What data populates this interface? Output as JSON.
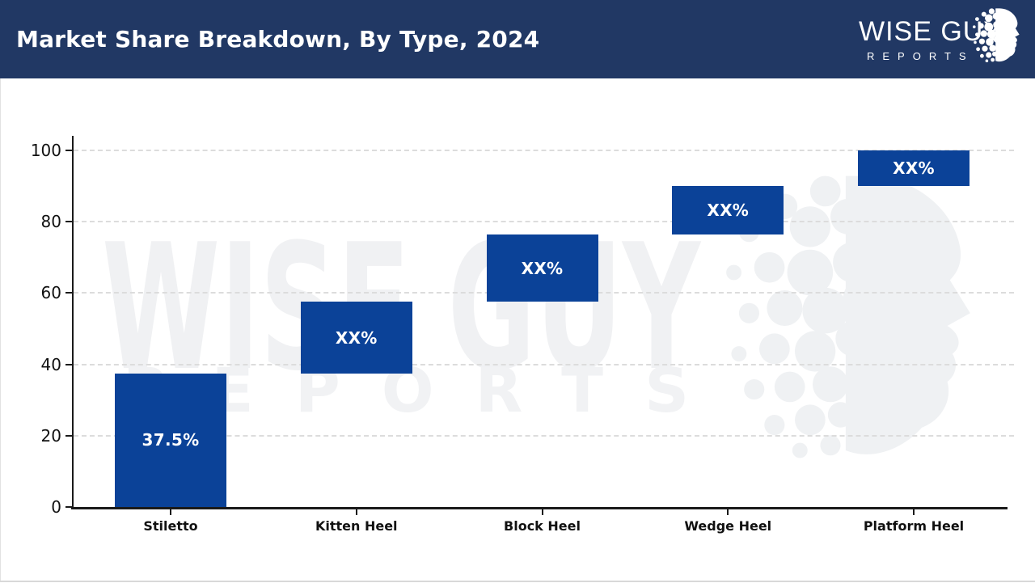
{
  "header": {
    "title": "Market Share Breakdown, By Type, 2024",
    "background_color": "#213864",
    "logo": {
      "line1": "WISE GUY",
      "line2": "REPORTS"
    }
  },
  "watermark": {
    "line1": "WISE GUY",
    "line2": "REPORTS"
  },
  "chart_data": {
    "type": "bar",
    "subtype": "waterfall",
    "title": "Market Share Breakdown, By Type, 2024",
    "categories": [
      "Stiletto",
      "Kitten Heel",
      "Block Heel",
      "Wedge Heel",
      "Platform Heel"
    ],
    "segments": [
      {
        "category": "Stiletto",
        "start": 0,
        "end": 37.5,
        "label": "37.5%"
      },
      {
        "category": "Kitten Heel",
        "start": 37.5,
        "end": 57.5,
        "label": "XX%"
      },
      {
        "category": "Block Heel",
        "start": 57.5,
        "end": 76.5,
        "label": "XX%"
      },
      {
        "category": "Wedge Heel",
        "start": 76.5,
        "end": 90,
        "label": "XX%"
      },
      {
        "category": "Platform Heel",
        "start": 90,
        "end": 100,
        "label": "XX%"
      }
    ],
    "ylim": [
      0,
      100
    ],
    "yticks": [
      0,
      20,
      40,
      60,
      80,
      100
    ],
    "xlabel": "",
    "ylabel": "",
    "grid": "horizontal-dashed",
    "legend": null,
    "bar_color": "#0b4298",
    "bar_label_color": "#ffffff",
    "axis_color": "#1a1a1a",
    "gridline_color": "#dcdcdc"
  }
}
